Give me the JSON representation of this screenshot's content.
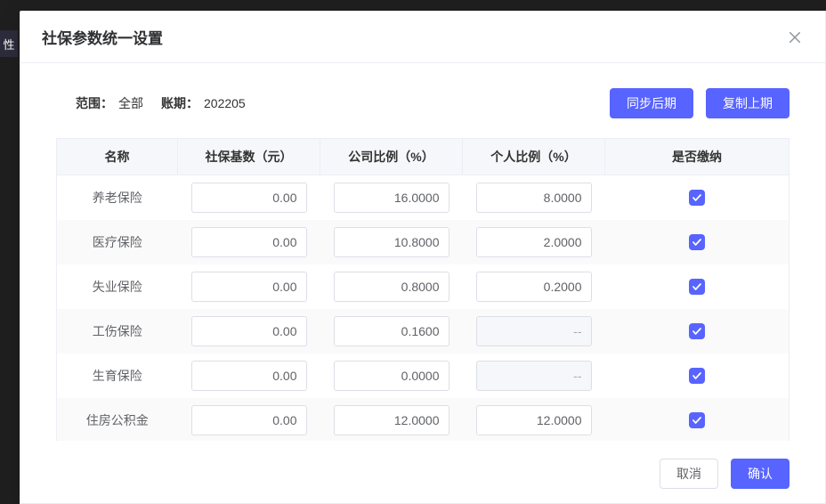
{
  "bg": {
    "stub": "性"
  },
  "header": {
    "title": "社保参数统一设置"
  },
  "meta": {
    "scope_label": "范围：",
    "scope_value": "全部",
    "period_label": "账期：",
    "period_value": "202205"
  },
  "buttons": {
    "sync_next": "同步后期",
    "copy_prev": "复制上期",
    "cancel": "取消",
    "confirm": "确认"
  },
  "table": {
    "columns": [
      "名称",
      "社保基数（元）",
      "公司比例（%）",
      "个人比例（%）",
      "是否缴纳"
    ],
    "rows": [
      {
        "name": "养老保险",
        "base": "0.00",
        "company": "16.0000",
        "personal": "8.0000",
        "personal_disabled": false,
        "pay": true
      },
      {
        "name": "医疗保险",
        "base": "0.00",
        "company": "10.8000",
        "personal": "2.0000",
        "personal_disabled": false,
        "pay": true
      },
      {
        "name": "失业保险",
        "base": "0.00",
        "company": "0.8000",
        "personal": "0.2000",
        "personal_disabled": false,
        "pay": true
      },
      {
        "name": "工伤保险",
        "base": "0.00",
        "company": "0.1600",
        "personal": "--",
        "personal_disabled": true,
        "pay": true
      },
      {
        "name": "生育保险",
        "base": "0.00",
        "company": "0.0000",
        "personal": "--",
        "personal_disabled": true,
        "pay": true
      },
      {
        "name": "住房公积金",
        "base": "0.00",
        "company": "12.0000",
        "personal": "12.0000",
        "personal_disabled": false,
        "pay": true
      }
    ],
    "styling": {
      "header_bg": "#f5f7fa",
      "border_color": "#ebeef5",
      "row_stripe_bg": "#fafafa",
      "input_border": "#dcdfe6",
      "disabled_bg": "#f5f7fa",
      "checkbox_bg": "#5864ff",
      "primary_btn_bg": "#5864ff",
      "font_size": 14,
      "col_widths": {
        "name": 136,
        "base": 160,
        "company": 160,
        "personal": 160
      }
    }
  }
}
